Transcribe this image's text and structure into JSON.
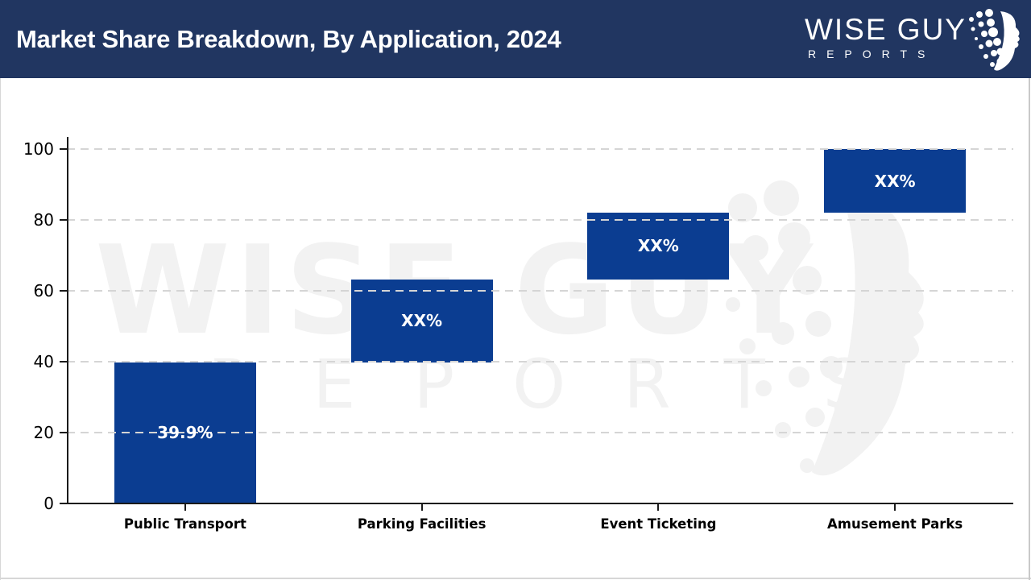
{
  "header": {
    "title": "Market Share Breakdown, By Application, 2024",
    "bg_color": "#213661",
    "logo": {
      "brand_top": "WISE GUY",
      "brand_bottom": "REPORTS"
    }
  },
  "watermark": {
    "line1": "WISE GUY",
    "line2": "REPORTS"
  },
  "chart_data": {
    "type": "bar",
    "variant": "waterfall",
    "title": "Market Share Breakdown, By Application, 2024",
    "categories": [
      "Public Transport",
      "Parking Facilities",
      "Event Ticketing",
      "Amusement Parks"
    ],
    "segments": [
      {
        "category": "Public Transport",
        "start": 0,
        "end": 39.9,
        "label": "39.9%"
      },
      {
        "category": "Parking Facilities",
        "start": 39.9,
        "end": 63.3,
        "label": "XX%"
      },
      {
        "category": "Event Ticketing",
        "start": 63.3,
        "end": 82.2,
        "label": "XX%"
      },
      {
        "category": "Amusement Parks",
        "start": 82.2,
        "end": 100,
        "label": "XX%"
      }
    ],
    "xlabel": "",
    "ylabel": "",
    "yticks": [
      0,
      20,
      40,
      60,
      80,
      100
    ],
    "ylim": [
      0,
      103.5
    ],
    "grid": true,
    "legend": false,
    "colors": {
      "bar": "#0b3d91",
      "bar_label": "#ffffff",
      "gridline": "#d5d5d5",
      "axis": "#1a1a1a",
      "tick_label": "#000000"
    }
  }
}
